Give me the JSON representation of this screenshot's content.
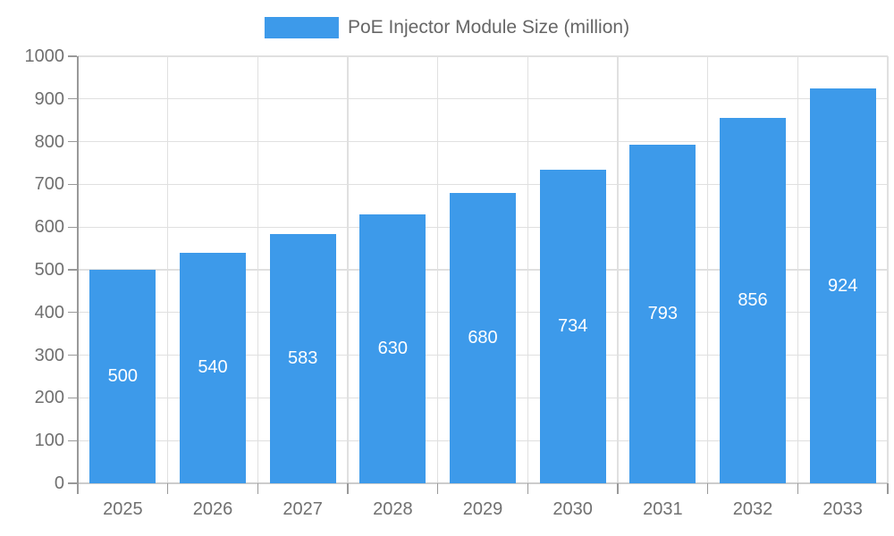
{
  "legend": {
    "label": "PoE Injector Module Size (million)"
  },
  "colors": {
    "bar": "#3D9AEA",
    "bar_label": "#ffffff",
    "axis_label_text": "#707070",
    "legend_text": "#666666",
    "gridline": "#e0e0e0",
    "y_axis_line": "#999999",
    "x_axis_line": "#cccccc",
    "tick": "#999999",
    "background": "#ffffff"
  },
  "chart_data": {
    "type": "bar",
    "title": "PoE Injector Module Size (million)",
    "categories": [
      "2025",
      "2026",
      "2027",
      "2028",
      "2029",
      "2030",
      "2031",
      "2032",
      "2033"
    ],
    "values": [
      500,
      540,
      583,
      630,
      680,
      734,
      793,
      856,
      924
    ],
    "xlabel": "",
    "ylabel": "",
    "ylim": [
      0,
      1000
    ],
    "y_ticks": [
      0,
      100,
      200,
      300,
      400,
      500,
      600,
      700,
      800,
      900,
      1000
    ],
    "grid": true,
    "legend_position": "top-center",
    "bar_label_position": "inside-center"
  }
}
